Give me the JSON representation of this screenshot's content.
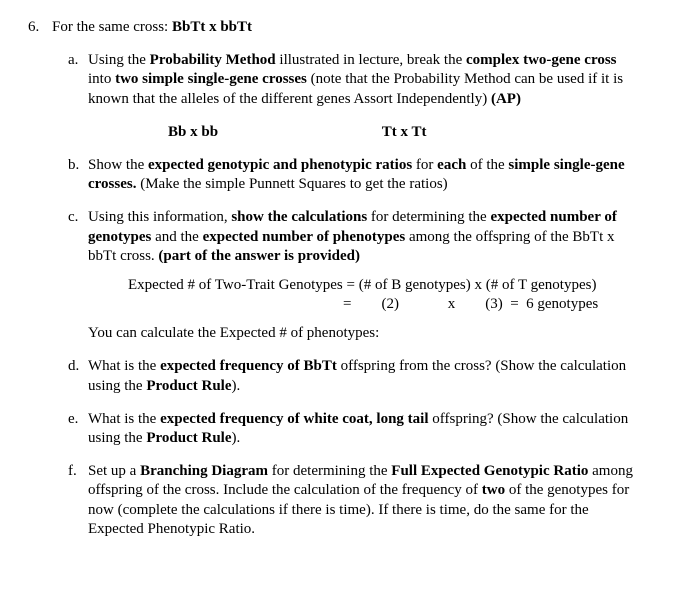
{
  "question_number": "6.",
  "question_stem_pre": "For the same cross:  ",
  "question_stem_bold": "BbTt  x  bbTt",
  "a": {
    "letter": "a.",
    "t1": "Using the ",
    "b1": "Probability Method",
    "t2": " illustrated in lecture, break the ",
    "b2": "complex two-gene cross",
    "t3": " into ",
    "b3": "two simple single-gene crosses",
    "t4": " (note that the Probability Method can be used if it is known that the alleles of the different genes Assort Independently) ",
    "b4": "(AP)"
  },
  "crosses": {
    "left": "Bb x bb",
    "right": "Tt x Tt"
  },
  "b": {
    "letter": "b.",
    "t1": "Show the ",
    "b1": "expected genotypic and phenotypic ratios",
    "t2": " for ",
    "b2": "each",
    "t3": " of the ",
    "b3": "simple single-gene crosses.",
    "t4": " (Make the simple Punnett Squares to get the ratios)"
  },
  "c": {
    "letter": "c.",
    "t1": "Using this information, ",
    "b1": "show the calculations",
    "t2": " for determining the ",
    "b2": "expected number of genotypes",
    "t3": " and the ",
    "b3": "expected number of phenotypes",
    "t4": " among the offspring of the BbTt  x  bbTt cross. ",
    "b4": "(part of the answer is provided)",
    "eq1": "Expected # of Two-Trait Genotypes = (# of B genotypes) x (# of T genotypes)",
    "eq2": "=        (2)             x        (3)  =  6 genotypes",
    "followup": "You can calculate the Expected # of phenotypes:"
  },
  "d": {
    "letter": "d.",
    "t1": "What is the ",
    "b1": "expected frequency of BbTt",
    "t2": " offspring from the cross? (Show the calculation using the ",
    "b2": "Product Rule",
    "t3": ")."
  },
  "e": {
    "letter": "e.",
    "t1": "What is the ",
    "b1": "expected frequency of white coat, long tail",
    "t2": " offspring? (Show the calculation using the ",
    "b2": "Product Rule",
    "t3": ")."
  },
  "f": {
    "letter": "f.",
    "t1": "Set up a ",
    "b1": "Branching Diagram",
    "t2": " for determining the ",
    "b2": "Full Expected Genotypic Ratio",
    "t3": " among offspring of the cross. Include the calculation of the frequency of ",
    "b3": "two",
    "t4": " of the genotypes for now (complete the calculations if there is time).  If there is time, do the same for the Expected Phenotypic Ratio."
  }
}
